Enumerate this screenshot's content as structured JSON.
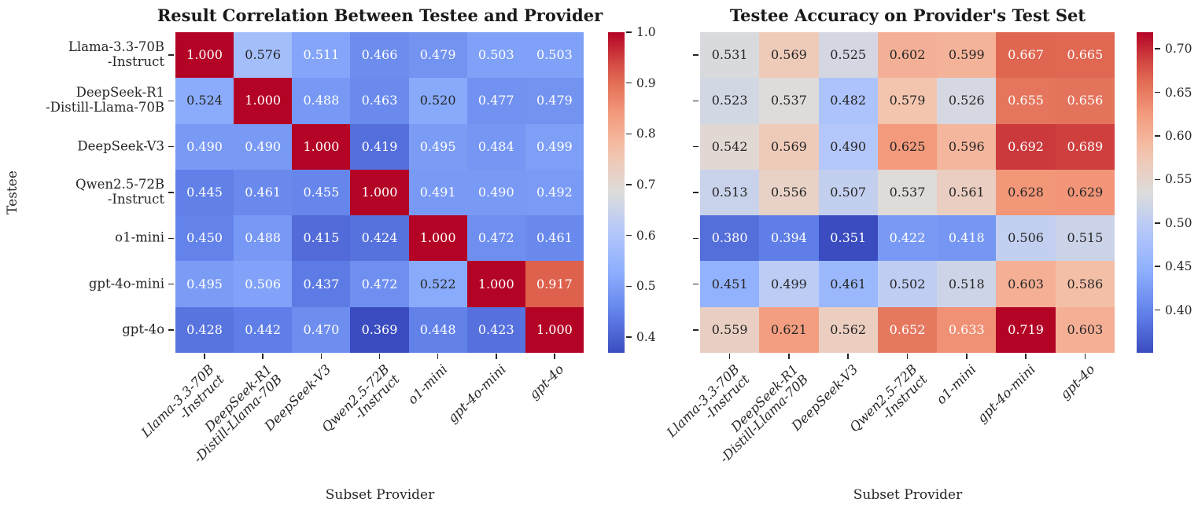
{
  "chart_data": [
    {
      "type": "heatmap",
      "title": "Result Correlation Between Testee and Provider",
      "xlabel": "Subset Provider",
      "ylabel": "Testee",
      "colormap": "coolwarm",
      "x_tick_labels": [
        "Llama-3.3-70B\n-Instruct",
        "DeepSeek-R1\n-Distill-Llama-70B",
        "DeepSeek-V3",
        "Qwen2.5-72B\n-Instruct",
        "o1-mini",
        "gpt-4o-mini",
        "gpt-4o"
      ],
      "y_tick_labels": [
        "Llama-3.3-70B\n-Instruct",
        "DeepSeek-R1\n-Distill-Llama-70B",
        "DeepSeek-V3",
        "Qwen2.5-72B\n-Instruct",
        "o1-mini",
        "gpt-4o-mini",
        "gpt-4o"
      ],
      "values": [
        [
          1.0,
          0.576,
          0.511,
          0.466,
          0.479,
          0.503,
          0.503
        ],
        [
          0.524,
          1.0,
          0.488,
          0.463,
          0.52,
          0.477,
          0.479
        ],
        [
          0.49,
          0.49,
          1.0,
          0.419,
          0.495,
          0.484,
          0.499
        ],
        [
          0.445,
          0.461,
          0.455,
          1.0,
          0.491,
          0.49,
          0.492
        ],
        [
          0.45,
          0.488,
          0.415,
          0.424,
          1.0,
          0.472,
          0.461
        ],
        [
          0.495,
          0.506,
          0.437,
          0.472,
          0.522,
          1.0,
          0.917
        ],
        [
          0.428,
          0.442,
          0.47,
          0.369,
          0.448,
          0.423,
          1.0
        ]
      ],
      "vmin": 0.369,
      "vmax": 1.0,
      "colorbar_ticks": [
        1.0,
        0.9,
        0.8,
        0.7,
        0.6,
        0.5,
        0.4
      ],
      "colorbar_tick_labels": [
        "1.0",
        "0.9",
        "0.8",
        "0.7",
        "0.6",
        "0.5",
        "0.4"
      ]
    },
    {
      "type": "heatmap",
      "title": "Testee Accuracy on Provider's Test Set",
      "xlabel": "Subset Provider",
      "ylabel": "",
      "colormap": "coolwarm",
      "x_tick_labels": [
        "Llama-3.3-70B\n-Instruct",
        "DeepSeek-R1\n-Distill-Llama-70B",
        "DeepSeek-V3",
        "Qwen2.5-72B\n-Instruct",
        "o1-mini",
        "gpt-4o-mini",
        "gpt-4o"
      ],
      "y_tick_labels": [],
      "values": [
        [
          0.531,
          0.569,
          0.525,
          0.602,
          0.599,
          0.667,
          0.665
        ],
        [
          0.523,
          0.537,
          0.482,
          0.579,
          0.526,
          0.655,
          0.656
        ],
        [
          0.542,
          0.569,
          0.49,
          0.625,
          0.596,
          0.692,
          0.689
        ],
        [
          0.513,
          0.556,
          0.507,
          0.537,
          0.561,
          0.628,
          0.629
        ],
        [
          0.38,
          0.394,
          0.351,
          0.422,
          0.418,
          0.506,
          0.515
        ],
        [
          0.451,
          0.499,
          0.461,
          0.502,
          0.518,
          0.603,
          0.586
        ],
        [
          0.559,
          0.621,
          0.562,
          0.652,
          0.633,
          0.719,
          0.603
        ]
      ],
      "vmin": 0.351,
      "vmax": 0.719,
      "colorbar_ticks": [
        0.7,
        0.65,
        0.6,
        0.55,
        0.5,
        0.45,
        0.4
      ],
      "colorbar_tick_labels": [
        "0.70",
        "0.65",
        "0.60",
        "0.55",
        "0.50",
        "0.45",
        "0.40"
      ]
    }
  ],
  "style": {
    "annotation_dark": "#262626",
    "annotation_light": "#ffffff",
    "annotation_format_decimals": 3
  }
}
